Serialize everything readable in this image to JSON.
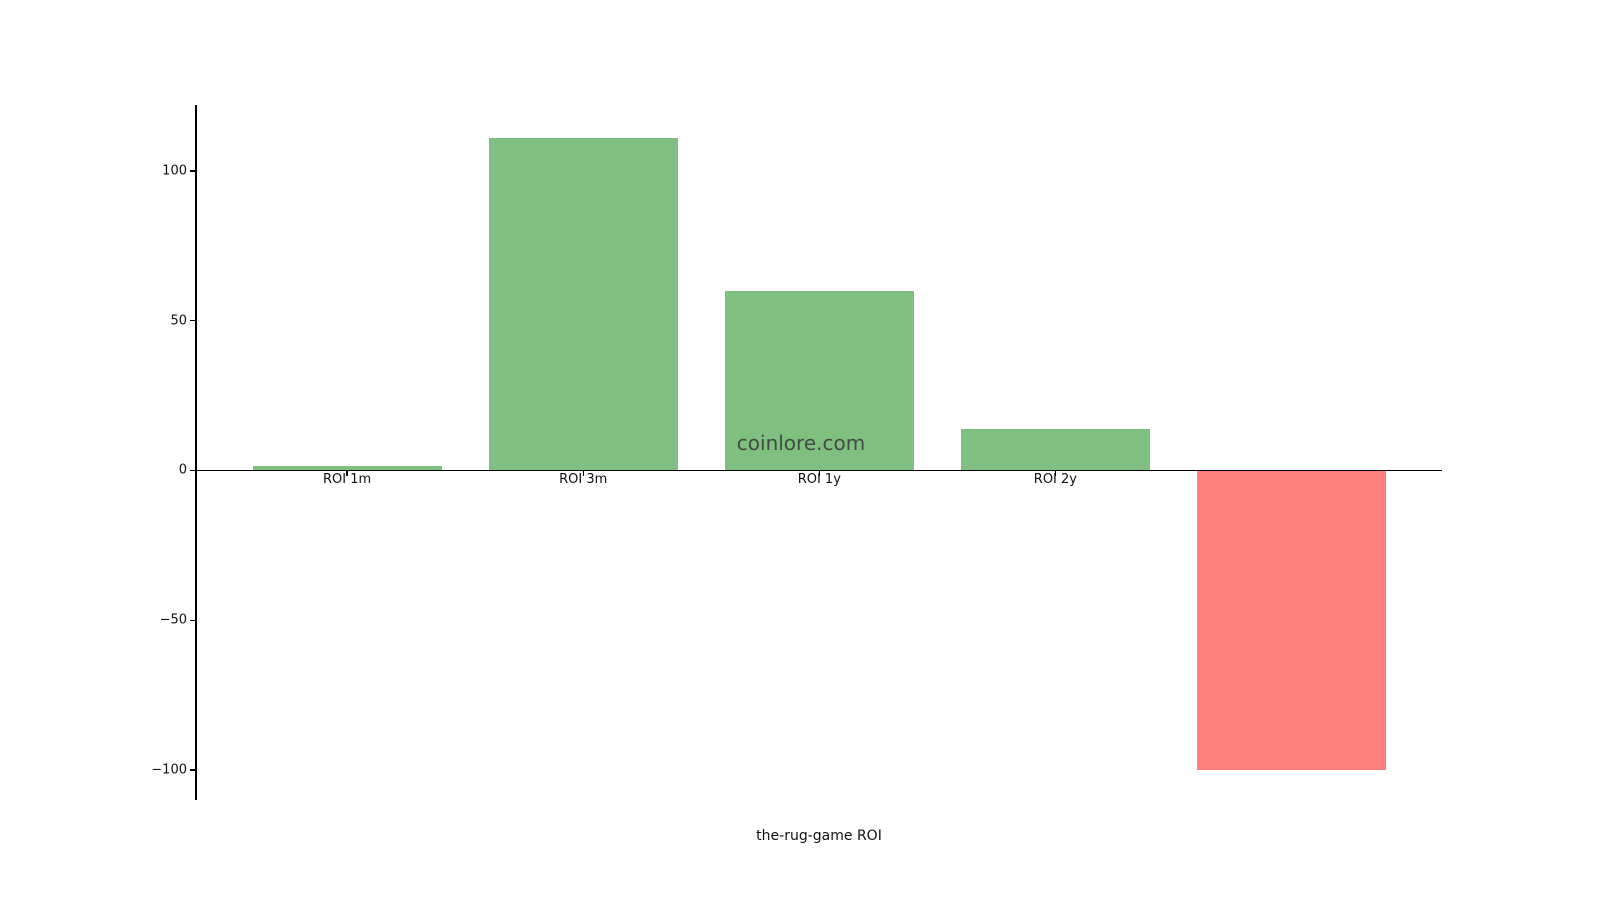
{
  "figure": {
    "background": "#ffffff",
    "watermark": "coinlore.com"
  },
  "colors": {
    "positive_bar": "#7fbf7f",
    "negative_bar": "#ff7f7f",
    "axis": "#000000",
    "tick_text": "#111111",
    "watermark_text": "#373737"
  },
  "chart_data": {
    "type": "bar",
    "title": "",
    "xlabel": "the-rug-game ROI",
    "ylabel": "",
    "watermark": "coinlore.com",
    "categories": [
      "ROI 1m",
      "ROI 3m",
      "ROI 1y",
      "ROI 2y",
      ""
    ],
    "values": [
      1.5,
      111,
      60,
      14,
      -100
    ],
    "bar_colors": [
      "#7fbf7f",
      "#7fbf7f",
      "#7fbf7f",
      "#7fbf7f",
      "#ff7f7f"
    ],
    "yticks": [
      100,
      50,
      0,
      -50,
      -100
    ],
    "ytick_labels": [
      "100",
      "50",
      "0",
      "−50",
      "−100"
    ],
    "ylim": [
      -110,
      122
    ],
    "bar_width_fraction": 0.8,
    "x_margin_fraction": 0.05,
    "grid": false,
    "legend": "none"
  }
}
